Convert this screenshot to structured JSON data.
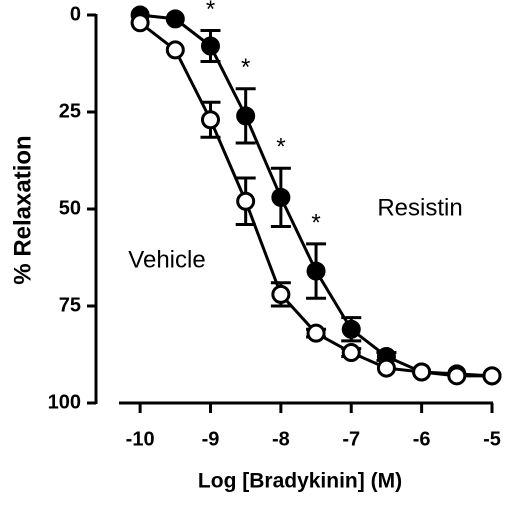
{
  "chart_data": {
    "type": "line",
    "x": [
      -10,
      -9.5,
      -9,
      -8.5,
      -8,
      -7.5,
      -7,
      -6.5,
      -6,
      -5.5,
      -5
    ],
    "xlabel": "Log [Bradykinin] (M)",
    "ylabel": "% Relaxation",
    "xlim": [
      -10.3,
      -5
    ],
    "xticks": [
      -10,
      -9,
      -8,
      -7,
      -6,
      -5
    ],
    "ylim": [
      100,
      0
    ],
    "yticks": [
      0,
      25,
      50,
      75,
      100
    ],
    "series": [
      {
        "name": "Resistin",
        "color": "#000000",
        "values": [
          0,
          1,
          8,
          26,
          47,
          66,
          81,
          88,
          92,
          92.5,
          93
        ],
        "errors": [
          0,
          0,
          4,
          7,
          7.5,
          7,
          3,
          1,
          0,
          0,
          0
        ]
      },
      {
        "name": "Vehicle",
        "color": "#ffffff",
        "values": [
          2,
          9,
          27,
          48,
          72,
          82,
          87,
          91,
          92,
          93,
          93
        ],
        "errors": [
          0,
          0,
          4.5,
          6,
          3,
          1,
          1,
          0,
          0,
          0,
          0
        ]
      }
    ],
    "significance": {
      "marker": "*",
      "x": [
        -9,
        -8.5,
        -8,
        -7.5
      ]
    }
  }
}
